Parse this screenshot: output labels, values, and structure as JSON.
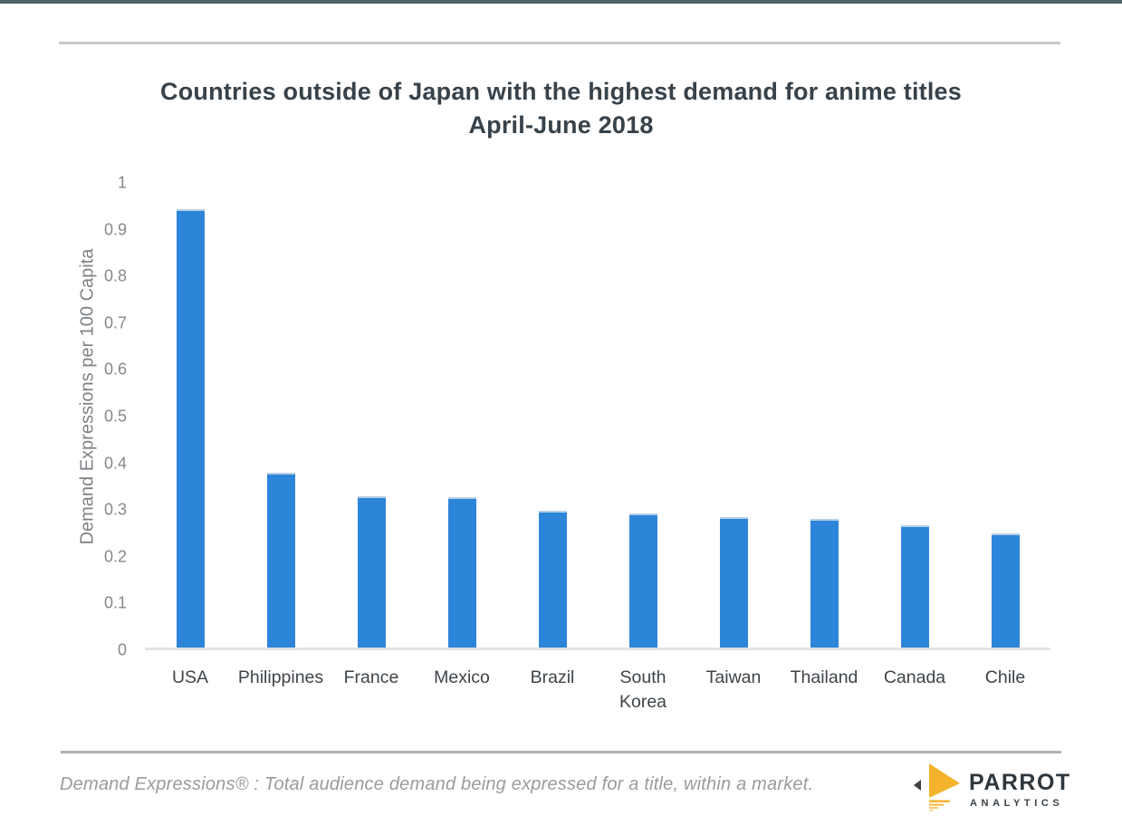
{
  "header": {
    "title_line1": "Countries outside of Japan with the highest demand for anime titles",
    "title_line2": "April-June 2018"
  },
  "chart_data": {
    "type": "bar",
    "title": "Countries outside of Japan with the highest demand for anime titles April-June 2018",
    "xlabel": "",
    "ylabel": "Demand Expressions per 100 Capita",
    "ylim": [
      0,
      1
    ],
    "yticks": [
      0,
      0.1,
      0.2,
      0.3,
      0.4,
      0.5,
      0.6,
      0.7,
      0.8,
      0.9,
      1
    ],
    "categories": [
      "USA",
      "Philippines",
      "France",
      "Mexico",
      "Brazil",
      "South Korea",
      "Taiwan",
      "Thailand",
      "Canada",
      "Chile"
    ],
    "values": [
      0.943,
      0.377,
      0.325,
      0.323,
      0.295,
      0.289,
      0.28,
      0.276,
      0.264,
      0.245
    ],
    "bar_color": "#2d85d9",
    "grid": false,
    "legend": false
  },
  "footer": {
    "note": "Demand Expressions® :  Total audience demand being expressed for a title, within a market.",
    "logo": {
      "brand": "PARROT",
      "sub": "ANALYTICS",
      "accent_color": "#f5b32b",
      "text_color": "#2f373d"
    }
  },
  "colors": {
    "top_bar": "#4c6462",
    "title_text": "#37424a",
    "axis_text": "#85898d",
    "bar_blue": "#2d85d9"
  }
}
